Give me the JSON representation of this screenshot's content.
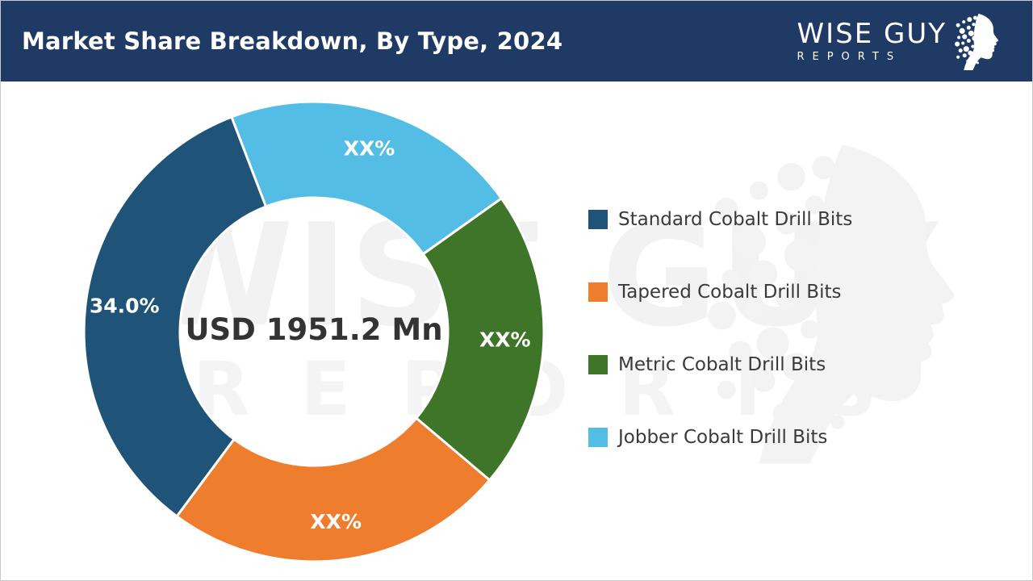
{
  "header": {
    "title": "Market Share Breakdown, By Type, 2024",
    "logo_line1": "WISE GUY",
    "logo_line2": "REPORTS"
  },
  "watermark": {
    "line1": "WISE GUY",
    "line2": "REPORTS"
  },
  "colors": {
    "header_bg": "#203A66",
    "title_text": "#FFFFFF",
    "center_text": "#333333",
    "legend_text": "#3A3A3A",
    "segment_label_text": "#FFFFFF"
  },
  "chart_data": {
    "type": "donut",
    "title": "Market Share Breakdown, By Type, 2024",
    "center_label": "USD 1951.2 Mn",
    "legend_position": "right",
    "start_angle_deg": -21,
    "clockwise_order": [
      3,
      2,
      1,
      0
    ],
    "segments": [
      {
        "name": "Standard Cobalt Drill Bits",
        "value": 34.0,
        "label": "34.0%",
        "color": "#1F5378"
      },
      {
        "name": "Tapered Cobalt Drill Bits",
        "value": 24.0,
        "label": "XX%",
        "color": "#EE7D2D"
      },
      {
        "name": "Metric Cobalt Drill Bits",
        "value": 21.0,
        "label": "XX%",
        "color": "#3F7529"
      },
      {
        "name": "Jobber Cobalt Drill Bits",
        "value": 21.0,
        "label": "XX%",
        "color": "#53BDE5"
      }
    ]
  }
}
